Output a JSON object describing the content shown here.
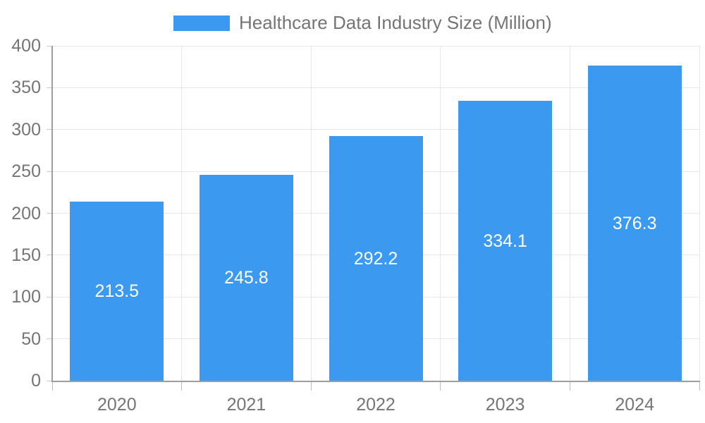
{
  "chart_data": {
    "type": "bar",
    "title": "",
    "legend": [
      "Healthcare Data Industry Size (Million)"
    ],
    "legend_position": "top",
    "categories": [
      "2020",
      "2021",
      "2022",
      "2023",
      "2024"
    ],
    "values": [
      213.5,
      245.8,
      292.2,
      334.1,
      376.3
    ],
    "value_labels": [
      "213.5",
      "245.8",
      "292.2",
      "334.1",
      "376.3"
    ],
    "xlabel": "",
    "ylabel": "",
    "ylim": [
      0,
      400
    ],
    "yticks": [
      0,
      50,
      100,
      150,
      200,
      250,
      300,
      350,
      400
    ],
    "grid": true,
    "colors": {
      "bar": "#3b99f0",
      "value_label": "#ffffff",
      "axis_text": "#757575",
      "axis_line": "#9e9e9e",
      "gridline": "#e6e6e6"
    }
  }
}
